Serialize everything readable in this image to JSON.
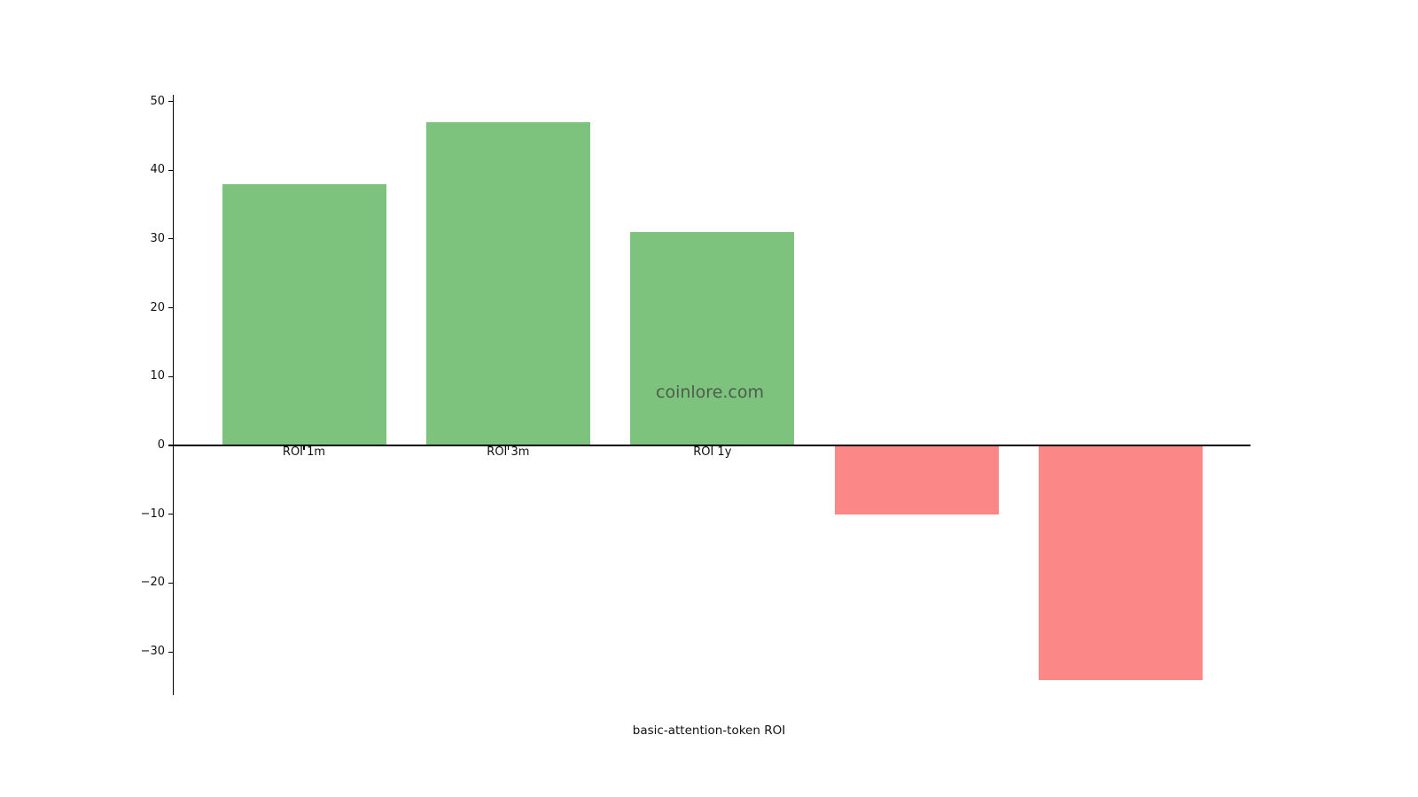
{
  "watermark": {
    "text": "coinlore.com",
    "color": "rgba(64,64,64,0.78)"
  },
  "chart_data": {
    "type": "bar",
    "title": "basic-attention-token ROI",
    "categories": [
      "ROI 1m",
      "ROI 3m",
      "ROI 1y",
      "",
      ""
    ],
    "values": [
      38,
      47,
      31,
      -10,
      -34
    ],
    "y_ticks": [
      50,
      40,
      30,
      20,
      10,
      0,
      -10,
      -20,
      -30
    ],
    "y_tick_labels": [
      "50",
      "40",
      "30",
      "20",
      "10",
      "0",
      "−10",
      "−20",
      "−30"
    ],
    "ylim": [
      -36,
      51
    ],
    "xlabel": "",
    "ylabel": "",
    "grid": false,
    "legend": "none",
    "colors": {
      "positive_bar": "#7dc37d",
      "negative_bar": "#fc8787",
      "axis": "#000000",
      "tick_text": "#111111"
    }
  }
}
